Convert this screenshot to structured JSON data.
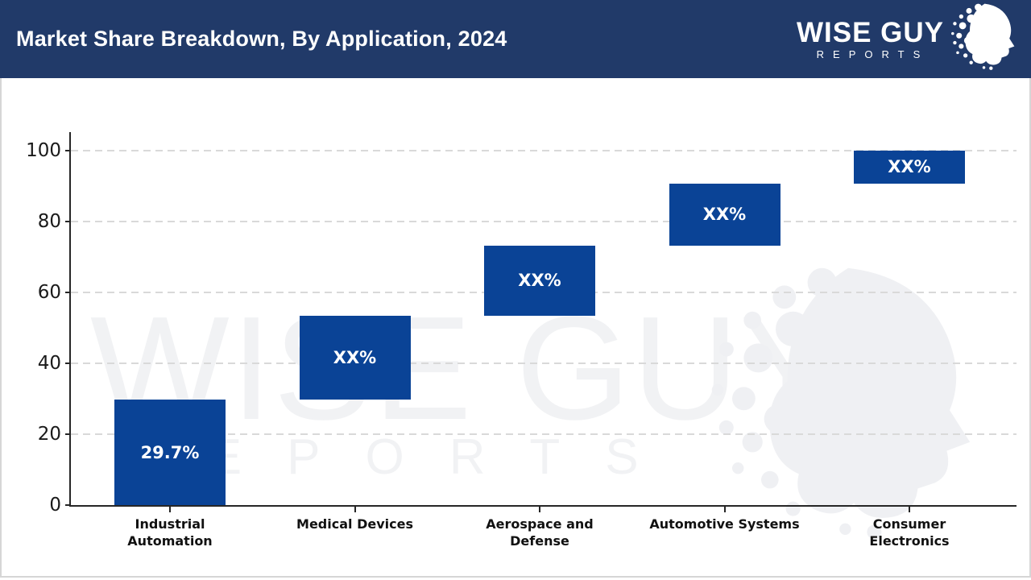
{
  "header": {
    "title": "Market Share Breakdown, By Application, 2024",
    "bg_color": "#213a69",
    "text_color": "#ffffff",
    "logo": {
      "line1": "WISE GUY",
      "line2": "REPORTS"
    }
  },
  "watermark": {
    "line1": "WISE GUY",
    "line2": "REPORTS",
    "color": "#f1f2f4"
  },
  "chart_data": {
    "type": "bar",
    "subtype": "waterfall-floating-bars",
    "title": "Market Share Breakdown, By Application, 2024",
    "xlabel": "",
    "ylabel": "",
    "ylim": [
      0,
      105
    ],
    "y_ticks": [
      0,
      20,
      40,
      60,
      80,
      100
    ],
    "grid": "horizontal-dashed",
    "legend": "none",
    "categories": [
      "Industrial\nAutomation",
      "Medical Devices",
      "Aerospace and\nDefense",
      "Automotive Systems",
      "Consumer\nElectronics"
    ],
    "bars": [
      {
        "category": "Industrial Automation",
        "start": 0,
        "end": 29.7,
        "label": "29.7%"
      },
      {
        "category": "Medical Devices",
        "start": 29.7,
        "end": 53.4,
        "label": "XX%"
      },
      {
        "category": "Aerospace and Defense",
        "start": 53.4,
        "end": 73.2,
        "label": "XX%"
      },
      {
        "category": "Automotive Systems",
        "start": 73.2,
        "end": 90.7,
        "label": "XX%"
      },
      {
        "category": "Consumer Electronics",
        "start": 90.7,
        "end": 100,
        "label": "XX%"
      }
    ],
    "bar_color": "#0a4396",
    "bar_label_color": "#ffffff",
    "gridline_color": "#d9d9d9",
    "axis_color": "#262626"
  }
}
